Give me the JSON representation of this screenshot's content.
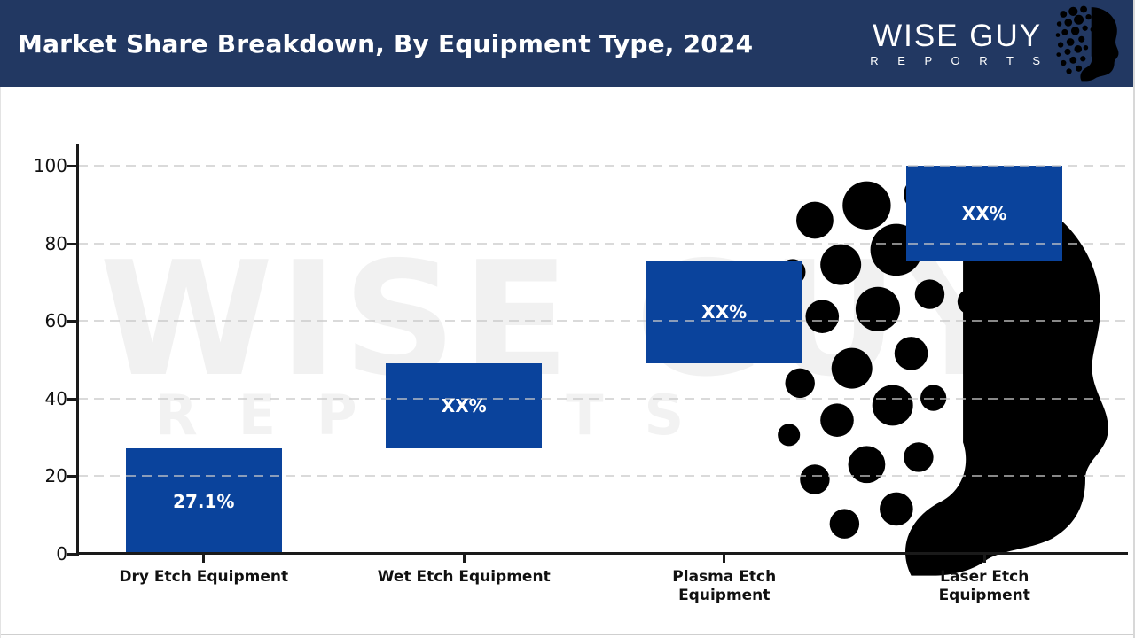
{
  "header": {
    "title": "Market Share Breakdown, By Equipment Type, 2024",
    "bg_color": "#223862",
    "brand": {
      "name": "WISE GUY",
      "sub": "R E P O R T S"
    }
  },
  "watermark": {
    "line1": "WISE GUY",
    "line2": "REPORTS"
  },
  "chart_data": {
    "type": "bar",
    "variant": "floating-segment (waterfall-style market share)",
    "title": "Market Share Breakdown, By Equipment Type, 2024",
    "categories": [
      "Dry Etch Equipment",
      "Wet Etch Equipment",
      "Plasma Etch\nEquipment",
      "Laser Etch\nEquipment"
    ],
    "bars": [
      {
        "category": "Dry Etch Equipment",
        "start": 0,
        "end": 27.1,
        "label": "27.1%"
      },
      {
        "category": "Wet Etch Equipment",
        "start": 27.1,
        "end": 49.1,
        "label": "XX%"
      },
      {
        "category": "Plasma Etch Equipment",
        "start": 49.1,
        "end": 75.4,
        "label": "XX%"
      },
      {
        "category": "Laser Etch Equipment",
        "start": 75.4,
        "end": 100,
        "label": "XX%"
      }
    ],
    "yticks": [
      0,
      20,
      40,
      60,
      80,
      100
    ],
    "ylim": [
      0,
      105
    ],
    "xlabel": "",
    "ylabel": "",
    "grid": true,
    "gridline_style": "dashed",
    "legend": "none",
    "bar_color": "#0a439c",
    "bar_label_color": "#ffffff",
    "axis_color": "#1a1a1a",
    "gridline_color": "#d8d8d8"
  }
}
